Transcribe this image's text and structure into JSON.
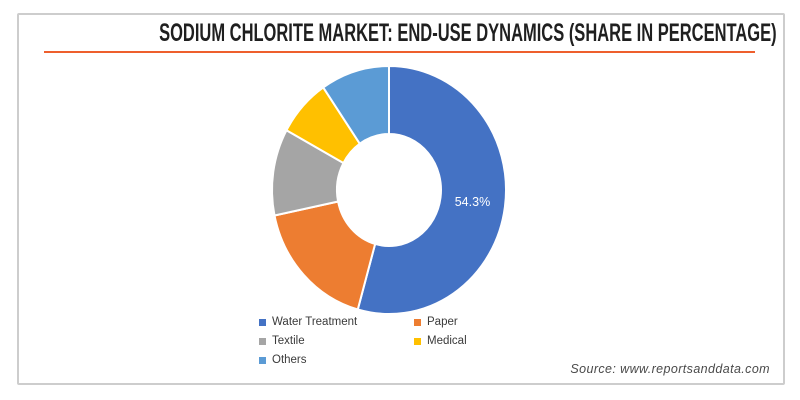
{
  "header": {
    "title": "SODIUM CHLORITE MARKET: END-USE DYNAMICS (SHARE IN PERCENTAGE)"
  },
  "theme": {
    "underline_color": "#EE5F2D",
    "frame_border_color": "#CDCDCD",
    "title_color": "#1F1F1F",
    "legend_text_color": "#3A3A3A",
    "source_text_color": "#4A4A4A",
    "value_label_color": "#FFFFFF"
  },
  "chart_data": {
    "type": "pie",
    "subtype": "donut",
    "title": "SODIUM CHLORITE MARKET: END-USE DYNAMICS (SHARE IN PERCENTAGE)",
    "start_angle_deg": 0,
    "direction": "clockwise",
    "donut_hole_ratio": 0.45,
    "legend_position": "bottom",
    "grid": false,
    "categories": [
      "Water Treatment",
      "Paper",
      "Textile",
      "Medical",
      "Others"
    ],
    "values": [
      54.3,
      17.4,
      11.3,
      7.5,
      9.5
    ],
    "colors": [
      "#4472C4",
      "#ED7D31",
      "#A5A5A5",
      "#FFC000",
      "#5B9BD5"
    ],
    "slices": [
      {
        "label": "Water Treatment",
        "value": 54.3,
        "color": "#4472C4",
        "value_label": "54.3%"
      },
      {
        "label": "Paper",
        "value": 17.4,
        "color": "#ED7D31",
        "value_label": ""
      },
      {
        "label": "Textile",
        "value": 11.3,
        "color": "#A5A5A5",
        "value_label": ""
      },
      {
        "label": "Medical",
        "value": 7.5,
        "color": "#FFC000",
        "value_label": ""
      },
      {
        "label": "Others",
        "value": 9.5,
        "color": "#5B9BD5",
        "value_label": ""
      }
    ]
  },
  "footer": {
    "source": "Source: www.reportsanddata.com"
  }
}
